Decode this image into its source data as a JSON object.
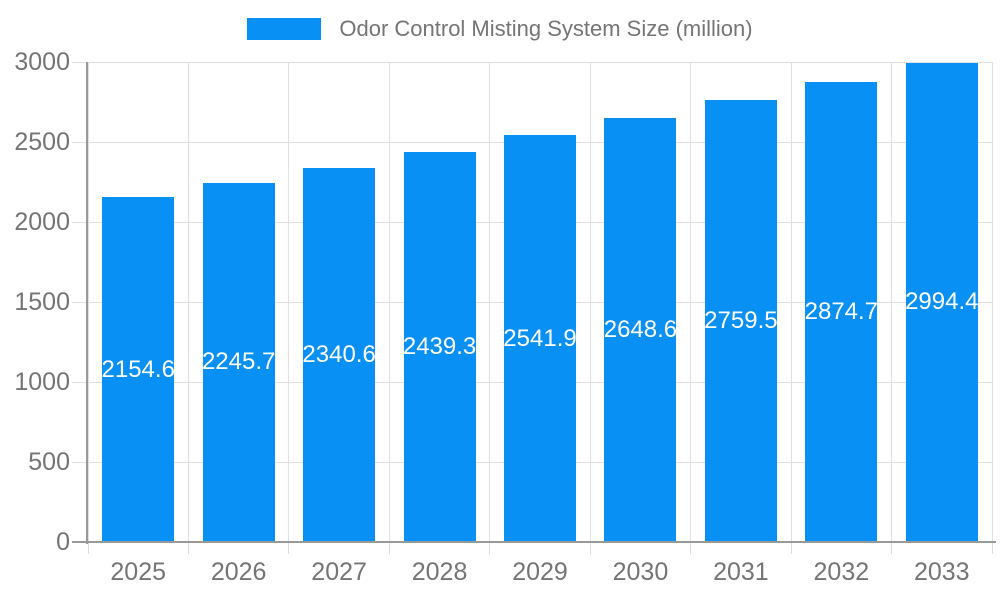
{
  "chart_data": {
    "type": "bar",
    "title": "Odor Control Misting System Size (million)",
    "legend": "Odor Control Misting System Size (million)",
    "legend_position": "top-center",
    "categories": [
      "2025",
      "2026",
      "2027",
      "2028",
      "2029",
      "2030",
      "2031",
      "2032",
      "2033"
    ],
    "values": [
      2154.6,
      2245.7,
      2340.6,
      2439.3,
      2541.9,
      2648.6,
      2759.5,
      2874.7,
      2994.4
    ],
    "data_labels": [
      "2154.6",
      "2245.7",
      "2340.6",
      "2439.3",
      "2541.9",
      "2648.6",
      "2759.5",
      "2874.7",
      "2994.4"
    ],
    "xlabel": "",
    "ylabel": "",
    "ylim": [
      0,
      3000
    ],
    "yticks": [
      0,
      500,
      1000,
      1500,
      2000,
      2500,
      3000
    ],
    "grid": "horizontal-and-vertical",
    "colors": {
      "bar": "#0990f5",
      "data_label": "#ffffff",
      "axis_line": "#999999",
      "gridline": "#e0e0e0",
      "tick": "#d9d9d9",
      "axis_label": "#757575",
      "legend_text": "#757575",
      "background": "#ffffff"
    }
  }
}
